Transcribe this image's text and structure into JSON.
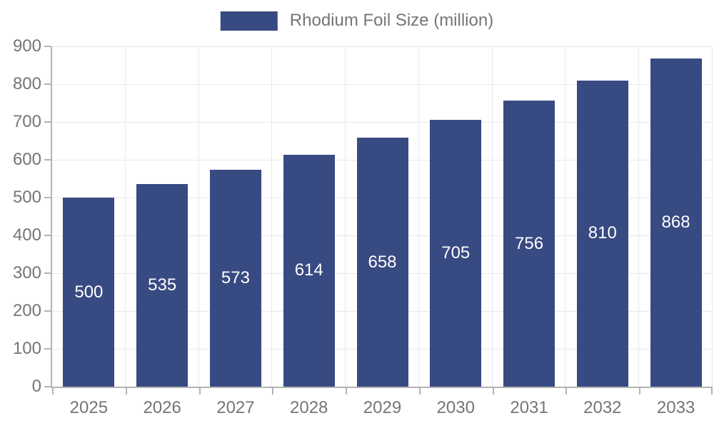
{
  "legend": {
    "label": "Rhodium Foil Size (million)"
  },
  "chart_data": {
    "type": "bar",
    "title": "",
    "categories": [
      "2025",
      "2026",
      "2027",
      "2028",
      "2029",
      "2030",
      "2031",
      "2032",
      "2033"
    ],
    "series": [
      {
        "name": "Rhodium Foil Size (million)",
        "values": [
          500,
          535,
          573,
          614,
          658,
          705,
          756,
          810,
          868
        ]
      }
    ],
    "xlabel": "",
    "ylabel": "",
    "ylim": [
      0,
      900
    ],
    "ytick_step": 100,
    "grid": true,
    "legend_position": "top",
    "bar_labels_inside": true,
    "colors": {
      "bar": "#384a82",
      "bar_label": "#ffffff",
      "axis_text": "#757575",
      "axis_line": "#b3b3b3",
      "gridline": "#e8e8e8",
      "background": "#ffffff"
    }
  }
}
